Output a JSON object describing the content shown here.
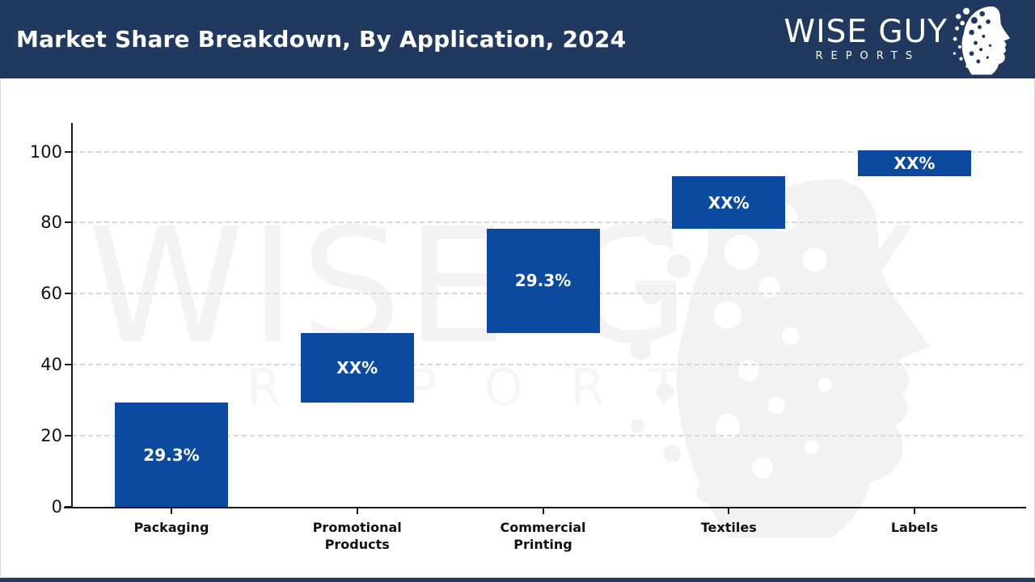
{
  "header": {
    "title": "Market Share Breakdown, By Application, 2024"
  },
  "logo": {
    "line1": "WISE GUY",
    "line2": "REPORTS"
  },
  "watermark": {
    "line1": "WISE GUY",
    "line2": "REPORTS"
  },
  "colors": {
    "header_bg": "#21395f",
    "bar_blue": "#0b4a9e",
    "grid_gray": "#d9d9d9"
  },
  "chart_data": {
    "type": "bar",
    "subtype": "waterfall",
    "title": "Market Share Breakdown, By Application, 2024",
    "categories": [
      "Packaging",
      "Promotional Products",
      "Commercial Printing",
      "Textiles",
      "Labels"
    ],
    "bars": [
      {
        "category": "Packaging",
        "start": 0,
        "end": 29.3,
        "label": "29.3%"
      },
      {
        "category": "Promotional Products",
        "start": 29.3,
        "end": 49.0,
        "label": "XX%"
      },
      {
        "category": "Commercial Printing",
        "start": 49.0,
        "end": 78.3,
        "label": "29.3%"
      },
      {
        "category": "Textiles",
        "start": 78.3,
        "end": 93.0,
        "label": "XX%"
      },
      {
        "category": "Labels",
        "start": 93.0,
        "end": 100.3,
        "label": "XX%"
      }
    ],
    "ylim": [
      0,
      108
    ],
    "yticks": [
      0,
      20,
      40,
      60,
      80,
      100
    ],
    "grid": "horizontal-dashed",
    "legend": "none",
    "bar_color": "#0b4a9e",
    "bar_label_color": "#ffffff",
    "xlabel": "",
    "ylabel": ""
  }
}
